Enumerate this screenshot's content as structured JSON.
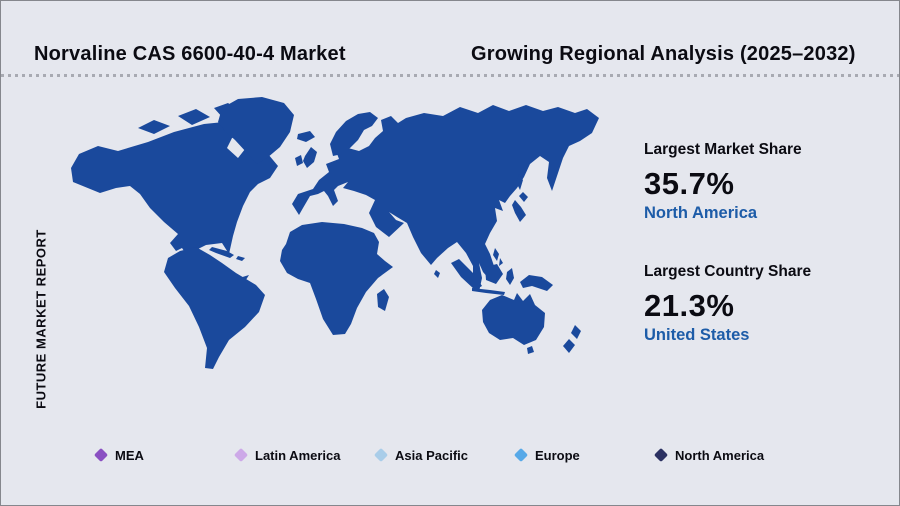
{
  "meta": {
    "background": "#e5e7ee",
    "border_color": "#85878d",
    "text_color": "#0b0b12"
  },
  "header": {
    "title_left": "Norvaline CAS 6600-40-4 Market",
    "title_right": "Growing Regional Analysis (2025–2032)"
  },
  "watermark": {
    "text": "FUTURE MARKET REPORT"
  },
  "map": {
    "fill": "#1a499c"
  },
  "colors": {
    "accent_blue": "#1d5ca8"
  },
  "stats": [
    {
      "label": "Largest Market Share",
      "value": "35.7%",
      "region": "North America"
    },
    {
      "label": "Largest Country Share",
      "value": "21.3%",
      "region": "United States"
    }
  ],
  "legend": [
    {
      "label": "MEA",
      "color": "#8a50c2"
    },
    {
      "label": "Latin America",
      "color": "#cda9e8"
    },
    {
      "label": "Asia Pacific",
      "color": "#a9cde9"
    },
    {
      "label": "Europe",
      "color": "#57a9e8"
    },
    {
      "label": "North America",
      "color": "#2b3162"
    }
  ],
  "chart_data": {
    "type": "map",
    "title": "Norvaline CAS 6600-40-4 Market Growing Regional Analysis (2025–2032)",
    "regions": [
      "MEA",
      "Latin America",
      "Asia Pacific",
      "Europe",
      "North America"
    ],
    "region_colors": [
      "#8a50c2",
      "#cda9e8",
      "#a9cde9",
      "#57a9e8",
      "#2b3162"
    ],
    "annotations": [
      {
        "label": "Largest Market Share",
        "value": 35.7,
        "unit": "%",
        "entity": "North America"
      },
      {
        "label": "Largest Country Share",
        "value": 21.3,
        "unit": "%",
        "entity": "United States"
      }
    ],
    "legend_position": "bottom",
    "map_fill": "#1a499c"
  }
}
